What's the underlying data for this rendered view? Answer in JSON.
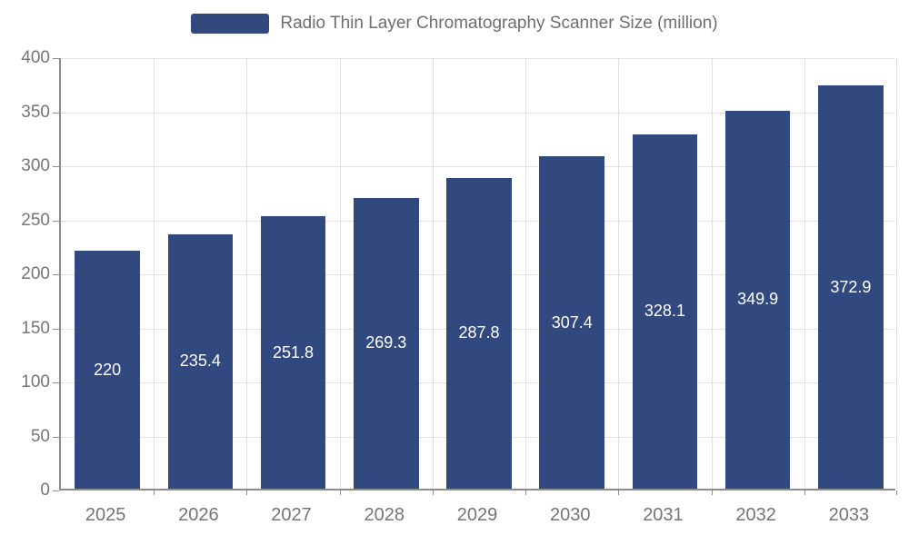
{
  "legend": {
    "label": "Radio Thin Layer Chromatography Scanner Size (million)"
  },
  "colors": {
    "bar": "#32497f",
    "grid": "#e2e2e2",
    "axis": "#8c8c8c",
    "tick_text": "#757575",
    "legend_text": "#6e6e6e",
    "value_text": "#ffffff"
  },
  "chart_data": {
    "type": "bar",
    "title": "Radio Thin Layer Chromatography Scanner Size (million)",
    "categories": [
      "2025",
      "2026",
      "2027",
      "2028",
      "2029",
      "2030",
      "2031",
      "2032",
      "2033"
    ],
    "values": [
      220,
      235.4,
      251.8,
      269.3,
      287.8,
      307.4,
      328.1,
      349.9,
      372.9
    ],
    "value_labels": [
      "220",
      "235.4",
      "251.8",
      "269.3",
      "287.8",
      "307.4",
      "328.1",
      "349.9",
      "372.9"
    ],
    "xlabel": "",
    "ylabel": "",
    "ylim": [
      0,
      400
    ],
    "yticks": [
      0,
      50,
      100,
      150,
      200,
      250,
      300,
      350,
      400
    ],
    "grid": true,
    "legend_position": "top",
    "value_label_position": "center-of-bar"
  }
}
